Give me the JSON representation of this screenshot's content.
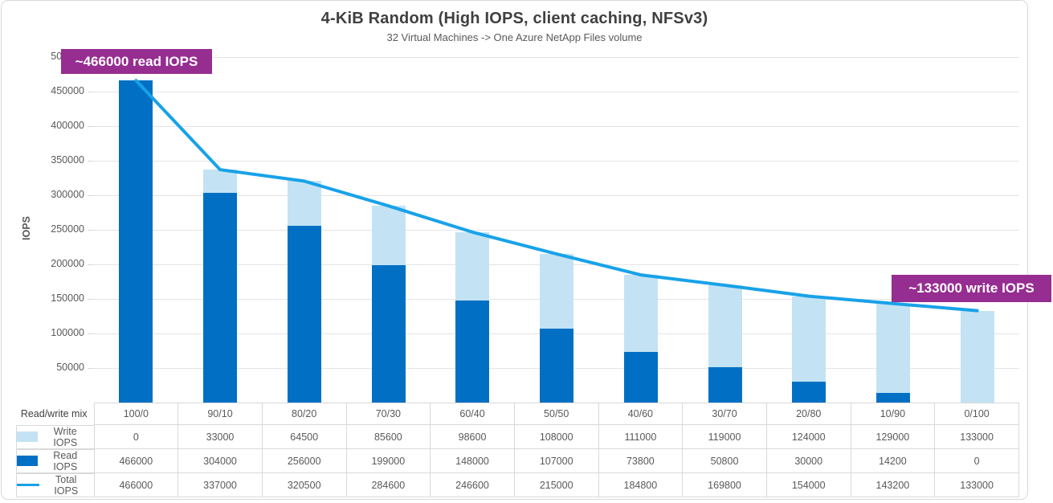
{
  "chart_data": {
    "type": "bar",
    "subtype": "stacked-column-with-line-overlay",
    "title": "4-KiB Random (High IOPS, client caching, NFSv3)",
    "subtitle": "32 Virtual Machines -> One Azure NetApp Files volume",
    "xlabel": "Read/write mix",
    "ylabel": "IOPS",
    "ylim": [
      0,
      500000
    ],
    "ytick_interval": 50000,
    "grid": true,
    "legend_position": "data-table-row-headers",
    "categories": [
      "100/0",
      "90/10",
      "80/20",
      "70/30",
      "60/40",
      "50/50",
      "40/60",
      "30/70",
      "20/80",
      "10/90",
      "0/100"
    ],
    "series": [
      {
        "name": "Write IOPS",
        "render": "bar-stack-top",
        "color": "#C3E3F4",
        "values": [
          0,
          33000,
          64500,
          85600,
          98600,
          108000,
          111000,
          119000,
          124000,
          129000,
          133000
        ]
      },
      {
        "name": "Read IOPS",
        "render": "bar-stack-bottom",
        "color": "#0170C4",
        "values": [
          466000,
          304000,
          256000,
          199000,
          148000,
          107000,
          73800,
          50800,
          30000,
          14200,
          0
        ]
      },
      {
        "name": "Total IOPS",
        "render": "line",
        "color": "#18A2E8",
        "values": [
          466000,
          337000,
          320500,
          284600,
          246600,
          215000,
          184800,
          169800,
          154000,
          143200,
          133000
        ]
      }
    ],
    "annotations": [
      {
        "text": "~466000 read IOPS",
        "bg": "#962D91",
        "text_color": "#FFFFFF",
        "position": "top-left"
      },
      {
        "text": "~133000 write IOPS",
        "bg": "#962D91",
        "text_color": "#FFFFFF",
        "position": "right"
      }
    ]
  }
}
